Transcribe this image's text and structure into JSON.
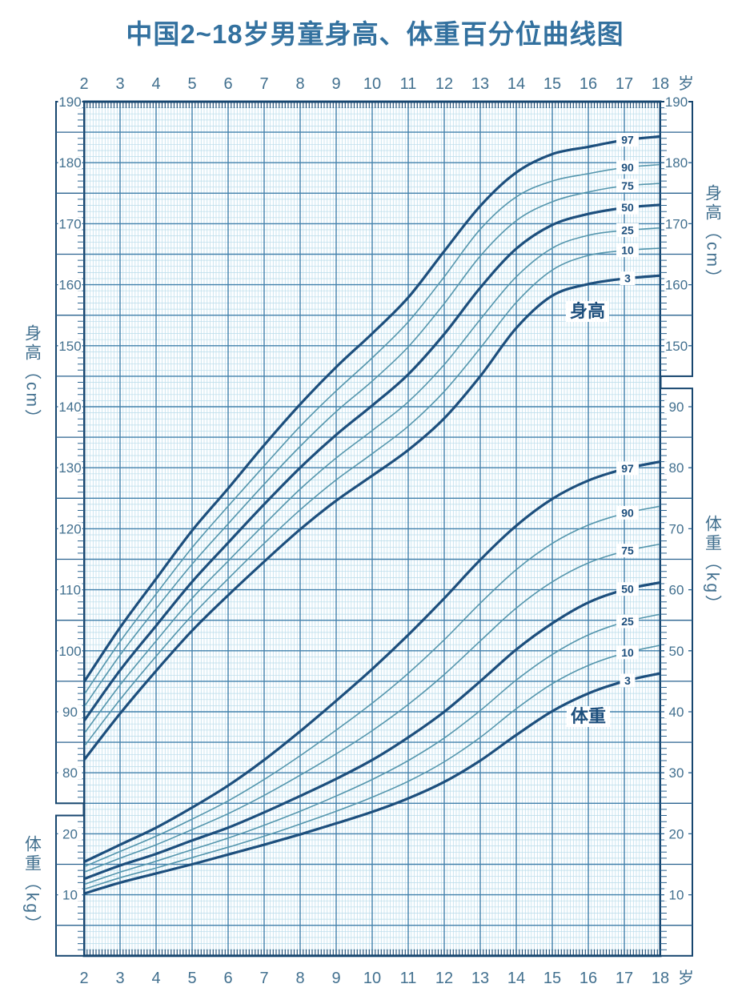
{
  "title": "中国2~18岁男童身高、体重百分位曲线图",
  "axis": {
    "age_unit": "岁",
    "ages": [
      2,
      3,
      4,
      5,
      6,
      7,
      8,
      9,
      10,
      11,
      12,
      13,
      14,
      15,
      16,
      17,
      18
    ],
    "height_axis_label": "身高（cm）",
    "weight_axis_label": "体重（kg）",
    "left_height_ticks": [
      190,
      180,
      170,
      160,
      150,
      140,
      130,
      120,
      110,
      100,
      90,
      80
    ],
    "left_weight_ticks": [
      20,
      10
    ],
    "right_height_ticks": [
      190,
      180,
      170,
      160,
      150
    ],
    "right_weight_ticks": [
      90,
      80,
      70,
      60,
      50,
      40,
      30,
      20,
      10
    ]
  },
  "labels": {
    "height_group": "身高",
    "weight_group": "体重"
  },
  "colors": {
    "title": "#33719f",
    "curve_major": "#1d4f7d",
    "curve_minor": "#5596ad",
    "grid_fine": "#b9dcea",
    "grid_major": "#4180ab",
    "frame": "#17466f",
    "ruler_line": "#2a628f",
    "tick_text": "#42708f"
  },
  "chart_data": {
    "type": "line",
    "title": "中国2~18岁男童身高、体重百分位曲线图",
    "x": [
      2,
      3,
      4,
      5,
      6,
      7,
      8,
      9,
      10,
      11,
      12,
      13,
      14,
      15,
      16,
      17,
      18
    ],
    "xlabel": "岁",
    "x_range": [
      2,
      18
    ],
    "grid": "graph-paper, minor monthly x and 1-unit y, major yearly x and 5-unit y",
    "legend_position": "labels on curves at age 17",
    "percentile_labels": [
      "97",
      "90",
      "75",
      "50",
      "25",
      "10",
      "3"
    ],
    "panels": [
      {
        "name": "height",
        "ylabel": "身高（cm）",
        "unit": "cm",
        "y_range_left_ruler": [
          75,
          190
        ],
        "y_range_right_ruler": [
          145,
          190
        ],
        "series": [
          {
            "percentile": "97",
            "emphasis": "thick",
            "values": [
              94.9,
              103.8,
              111.8,
              119.7,
              126.6,
              133.7,
              140.4,
              146.5,
              152.0,
              157.9,
              165.5,
              172.9,
              178.4,
              181.4,
              182.6,
              183.7,
              184.3
            ]
          },
          {
            "percentile": "90",
            "emphasis": "thin",
            "values": [
              92.8,
              101.5,
              109.3,
              116.9,
              123.7,
              130.3,
              136.8,
              142.6,
              148.0,
              153.9,
              161.3,
              169.1,
              174.4,
              177.0,
              178.2,
              179.2,
              179.7
            ]
          },
          {
            "percentile": "75",
            "emphasis": "thin",
            "values": [
              90.8,
              99.3,
              106.9,
              114.2,
              120.8,
              127.3,
              133.5,
              139.2,
              144.2,
              149.8,
              156.9,
              164.7,
              170.5,
              173.6,
              175.2,
              176.2,
              176.6
            ]
          },
          {
            "percentile": "50",
            "emphasis": "thick",
            "values": [
              88.5,
              96.8,
              104.1,
              111.3,
              117.7,
              124.0,
              130.0,
              135.4,
              140.2,
              145.3,
              151.9,
              159.5,
              165.9,
              169.8,
              171.6,
              172.6,
              173.1
            ]
          },
          {
            "percentile": "25",
            "emphasis": "thin",
            "values": [
              86.4,
              94.4,
              101.6,
              108.6,
              114.7,
              120.7,
              126.5,
              131.6,
              136.1,
              140.8,
              146.9,
              154.3,
              161.3,
              166.0,
              168.1,
              168.9,
              169.3
            ]
          },
          {
            "percentile": "10",
            "emphasis": "thin",
            "values": [
              84.3,
              92.0,
              99.1,
              105.8,
              111.8,
              117.6,
              123.1,
              128.0,
              132.3,
              136.8,
              142.5,
              149.6,
              157.1,
              162.4,
              164.8,
              165.6,
              166.0
            ]
          },
          {
            "percentile": "3",
            "emphasis": "thick",
            "values": [
              82.1,
              89.7,
              96.7,
              103.3,
              109.1,
              114.6,
              119.9,
              124.6,
              128.7,
              132.9,
              138.1,
              145.0,
              152.9,
              158.2,
              160.1,
              161.0,
              161.5
            ]
          }
        ]
      },
      {
        "name": "weight",
        "ylabel": "体重（kg）",
        "unit": "kg",
        "y_range_left_ruler": [
          0,
          23
        ],
        "y_range_right_ruler": [
          0,
          93
        ],
        "series": [
          {
            "percentile": "97",
            "emphasis": "thick",
            "values": [
              15.4,
              18.2,
              21.0,
              24.3,
              27.9,
              32.1,
              36.8,
              41.8,
              47.0,
              52.6,
              58.6,
              64.9,
              70.5,
              74.9,
              77.9,
              79.8,
              81.0
            ]
          },
          {
            "percentile": "90",
            "emphasis": "thin",
            "values": [
              14.6,
              17.1,
              19.6,
              22.4,
              25.4,
              28.9,
              32.8,
              37.0,
              41.4,
              46.3,
              51.8,
              57.8,
              63.3,
              67.6,
              70.6,
              72.5,
              73.7
            ]
          },
          {
            "percentile": "75",
            "emphasis": "thin",
            "values": [
              13.7,
              16.0,
              18.2,
              20.7,
              23.3,
              26.3,
              29.6,
              33.1,
              36.9,
              41.2,
              46.1,
              51.6,
              57.0,
              61.3,
              64.4,
              66.3,
              67.5
            ]
          },
          {
            "percentile": "50",
            "emphasis": "thick",
            "values": [
              12.6,
              14.8,
              16.7,
              18.9,
              21.0,
              23.5,
              26.2,
              29.0,
              32.1,
              35.8,
              40.0,
              45.0,
              50.2,
              54.5,
              57.9,
              60.0,
              61.2
            ]
          },
          {
            "percentile": "25",
            "emphasis": "thin",
            "values": [
              11.7,
              13.7,
              15.5,
              17.4,
              19.3,
              21.4,
              23.7,
              26.2,
              28.9,
              32.0,
              35.7,
              40.2,
              45.2,
              49.4,
              52.6,
              54.7,
              56.0
            ]
          },
          {
            "percentile": "10",
            "emphasis": "thin",
            "values": [
              10.9,
              12.8,
              14.4,
              16.1,
              17.8,
              19.6,
              21.6,
              23.7,
              26.0,
              28.6,
              31.8,
              35.8,
              40.5,
              44.6,
              47.6,
              49.6,
              50.9
            ]
          },
          {
            "percentile": "3",
            "emphasis": "thick",
            "values": [
              10.2,
              12.0,
              13.5,
              15.0,
              16.6,
              18.2,
              19.9,
              21.7,
              23.6,
              25.8,
              28.5,
              32.0,
              36.2,
              40.1,
              43.0,
              45.0,
              46.3
            ]
          }
        ]
      }
    ]
  }
}
